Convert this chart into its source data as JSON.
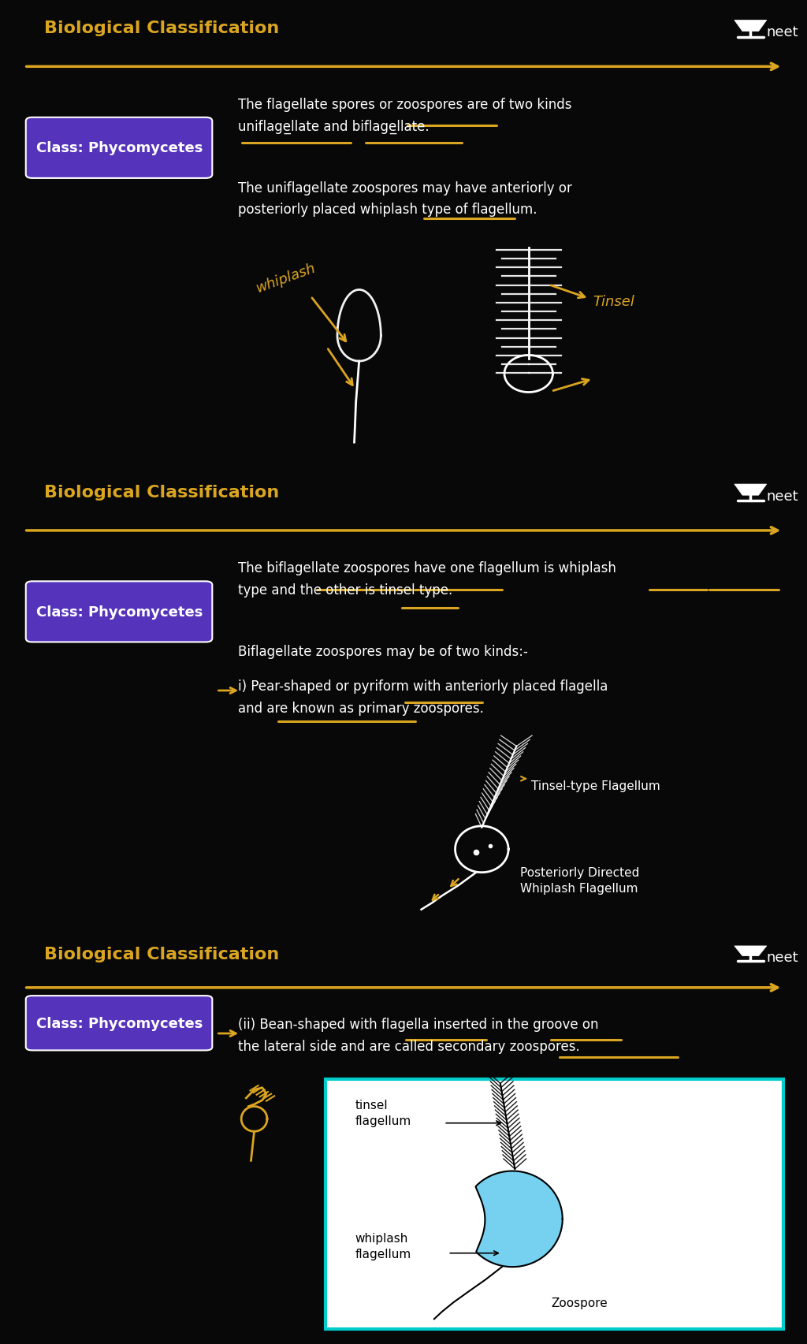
{
  "bg_color": "#080808",
  "sep_color": "#555555",
  "title_color": "#DAA520",
  "title_text": "Biological Classification",
  "neet_color": "#ffffff",
  "class_box_color": "#5533BB",
  "class_box_text": "Class: Phycomycetes",
  "class_text_color": "#ffffff",
  "line_color": "#DAA520",
  "accent_color": "#DAA520",
  "text_color": "#ffffff",
  "panel1_text1": "The flagellate spores or zoospores are of two kinds\nuniflage̲llate and biflage̲llate.",
  "panel1_text2": "The uniflagellate zoospores may have anteriorly or\nposteriorly placed whiplash type of flagellum.",
  "panel1_label1": "whiplash",
  "panel1_label2": "Tinsel",
  "panel2_text1": "The biflagellate zoospores have one flagellum is whiplash\ntype and the other is tinsel type.",
  "panel2_text2": "Biflagellate zoospores may be of two kinds:-",
  "panel2_text3": "i) Pear-shaped or pyriform with anteriorly placed flagella\nand are known as primary zoospores.",
  "panel2_label1": "Tinsel-type Flagellum",
  "panel2_label2": "Posteriorly Directed\nWhiplash Flagellum",
  "panel3_text1": "(ii) Bean-shaped with flagella inserted in the groove on\nthe lateral side and are called secondary zoospores.",
  "panel3_label1": "tinsel\nflagellum",
  "panel3_label2": "whiplash\nflagellum",
  "panel3_label3": "Zoospore",
  "figsize": [
    10.24,
    17.06
  ],
  "dpi": 100
}
